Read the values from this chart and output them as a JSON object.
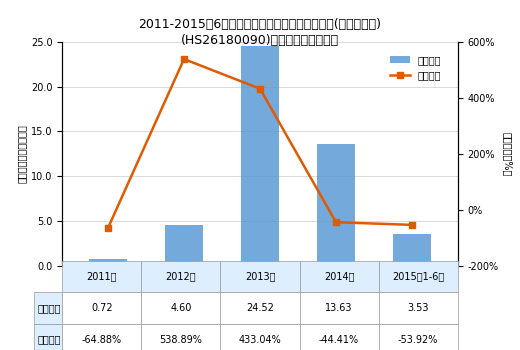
{
  "title_line1": "2011-2015年6月其他的冶炼钢铁产生的粒状熔渣(包括熔渣砂)",
  "title_line2": "(HS26180090)出口总额及增速统计",
  "categories": [
    "2011年",
    "2012年",
    "2013年",
    "2014年",
    "2015年1-6月"
  ],
  "bar_values": [
    0.72,
    4.6,
    24.52,
    13.63,
    3.53
  ],
  "line_values": [
    -64.88,
    538.89,
    433.04,
    -44.41,
    -53.92
  ],
  "bar_color": "#5B9BD5",
  "line_color": "#E05A00",
  "ylabel_left": "出口金额（百万美元）",
  "ylabel_right": "同比增长（%）",
  "ylim_left": [
    0,
    25
  ],
  "ylim_right": [
    -200,
    600
  ],
  "yticks_left": [
    0.0,
    5.0,
    10.0,
    15.0,
    20.0,
    25.0
  ],
  "yticks_right": [
    -200,
    0,
    200,
    400,
    600
  ],
  "legend_bar": "出口金额",
  "legend_line": "同比增长",
  "table_row1_label": "出口金额",
  "table_row2_label": "同比增长",
  "table_row1_values": [
    "0.72",
    "4.60",
    "24.52",
    "13.63",
    "3.53"
  ],
  "table_row2_values": [
    "-64.88%",
    "538.89%",
    "433.04%",
    "-44.41%",
    "-53.92%"
  ],
  "bg_color": "#FFFFFF",
  "chart_bg": "#FFFFFF",
  "grid_color": "#CCCCCC"
}
